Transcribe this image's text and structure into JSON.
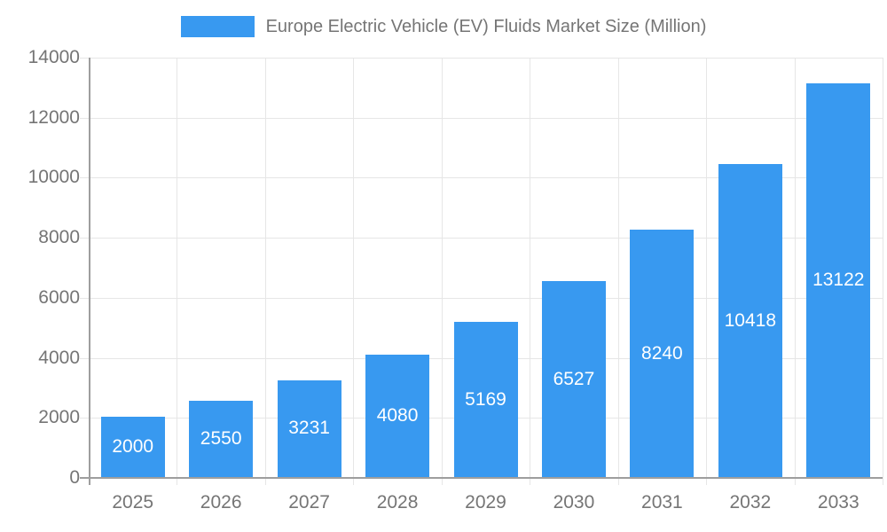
{
  "legend": {
    "label": "Europe Electric Vehicle (EV) Fluids Market Size (Million)"
  },
  "chart_data": {
    "type": "bar",
    "title": "Europe Electric Vehicle (EV) Fluids Market Size (Million)",
    "categories": [
      "2025",
      "2026",
      "2027",
      "2028",
      "2029",
      "2030",
      "2031",
      "2032",
      "2033"
    ],
    "values": [
      2000,
      2550,
      3231,
      4080,
      5169,
      6527,
      8240,
      10418,
      13122
    ],
    "value_labels": [
      "2000",
      "2550",
      "3231",
      "4080",
      "5169",
      "6527",
      "8240",
      "10418",
      "13122"
    ],
    "xlabel": "",
    "ylabel": "",
    "ylim": [
      0,
      14000
    ],
    "yticks": [
      0,
      2000,
      4000,
      6000,
      8000,
      10000,
      12000,
      14000
    ],
    "grid": true,
    "legend_position": "top"
  },
  "colors": {
    "bar": "#3899f0",
    "gridline": "#e6e6e6",
    "axis_line": "#9e9e9e",
    "tick_text": "#757575",
    "bar_value_text": "#ffffff",
    "background": "#ffffff"
  }
}
